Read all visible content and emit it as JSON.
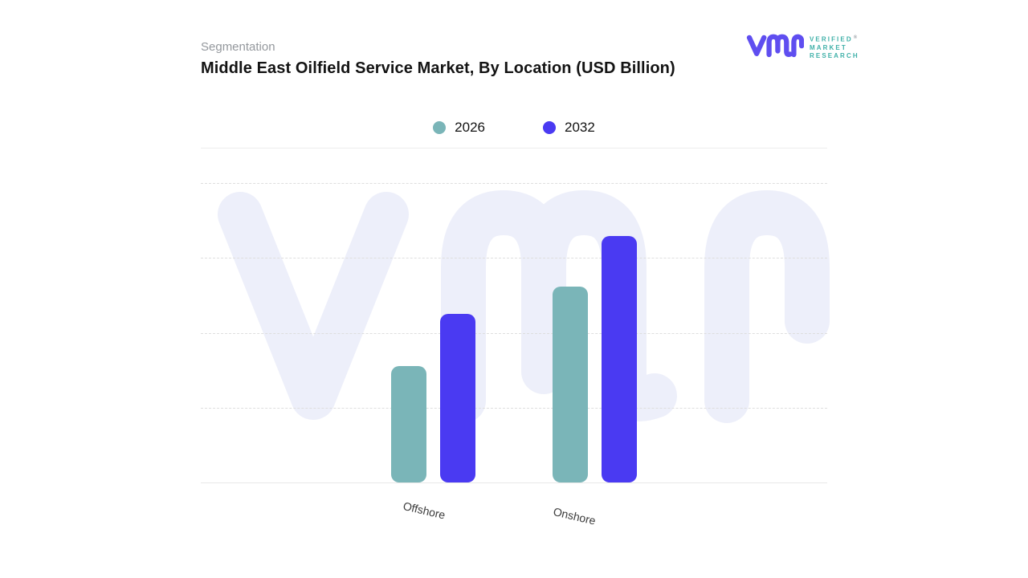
{
  "page": {
    "eyebrow": "Segmentation",
    "title": "Middle East Oilfield Service Market, By Location (USD Billion)"
  },
  "logo": {
    "name": "verified-market-research",
    "lines": [
      "VERIFIED",
      "MARKET",
      "RESEARCH"
    ],
    "registered_symbol": "®",
    "mark_color": "#5f4ef0",
    "text_color": "#3fb0a8"
  },
  "watermark": {
    "glyph": "vmr",
    "color": "#edeffa"
  },
  "chart_data": {
    "type": "bar",
    "title": "Middle East Oilfield Service Market, By Location (USD Billion)",
    "categories": [
      "Offshore",
      "Onshore"
    ],
    "series": [
      {
        "name": "2026",
        "color": "#7ab5b8",
        "values": [
          1.55,
          2.62
        ]
      },
      {
        "name": "2032",
        "color": "#4a3af2",
        "values": [
          2.25,
          3.29
        ]
      }
    ],
    "xlabel": "",
    "ylabel": "",
    "ylim": [
      0,
      4
    ],
    "y_tick_labels_visible": false,
    "values_estimated_from_gridlines": true,
    "grid": "horizontal-dashed",
    "legend_position": "top-center"
  }
}
